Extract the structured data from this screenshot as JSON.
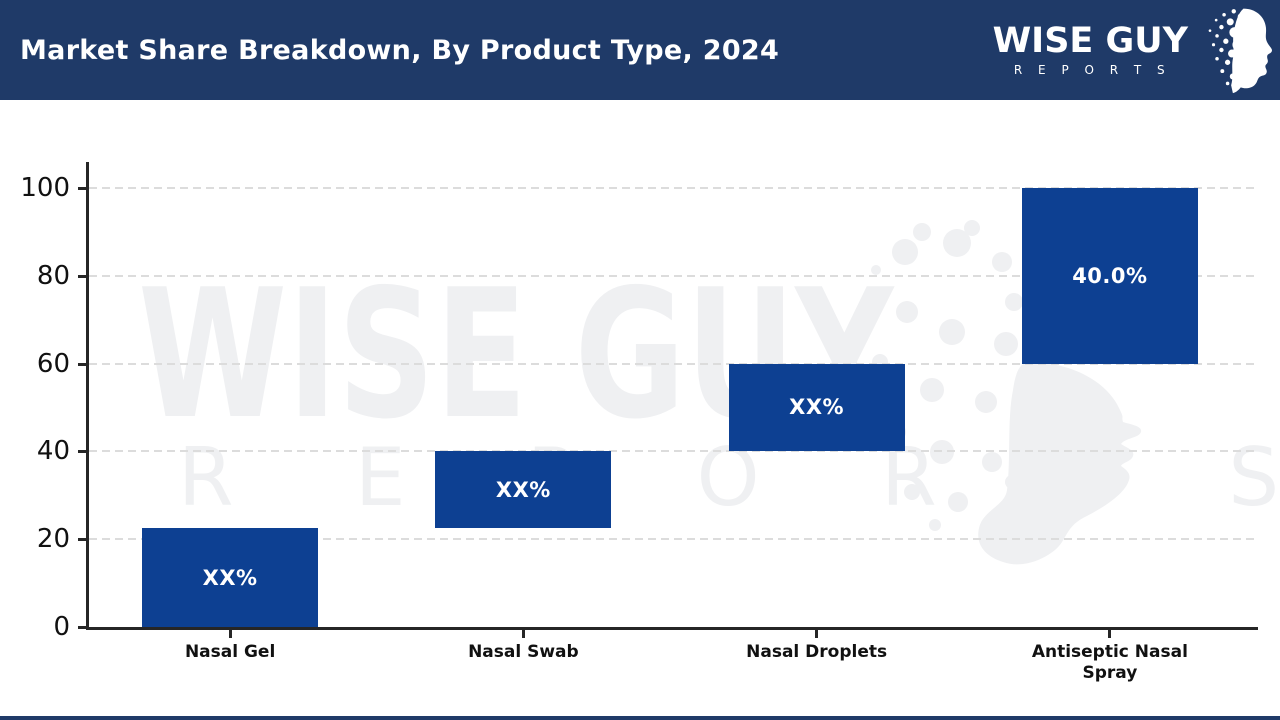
{
  "header": {
    "title": "Market Share Breakdown, By Product Type, 2024",
    "logo": {
      "name_top": "WISE GUY",
      "name_bottom": "R E P O R T S"
    }
  },
  "watermark": {
    "text_top": "WISE GUY",
    "text_bottom": "R E P O R T S"
  },
  "colors": {
    "header_bg": "#1f3a68",
    "bar_fill": "#0d4092",
    "bar_label_text": "#ffffff",
    "watermark": "#eff0f2",
    "gridline": "#dcdcdc",
    "axis": "#262626",
    "tick_label": "#111111"
  },
  "chart_data": {
    "type": "bar",
    "subtype": "waterfall",
    "title": "Market Share Breakdown, By Product Type, 2024",
    "categories": [
      "Nasal Gel",
      "Nasal Swab",
      "Nasal Droplets",
      "Antiseptic Nasal Spray"
    ],
    "segments": [
      {
        "category": "Nasal Gel",
        "start": 0,
        "end": 22.5,
        "label": "XX%"
      },
      {
        "category": "Nasal Swab",
        "start": 22.5,
        "end": 40,
        "label": "XX%"
      },
      {
        "category": "Nasal Droplets",
        "start": 40,
        "end": 60,
        "label": "XX%"
      },
      {
        "category": "Antiseptic Nasal Spray",
        "start": 60,
        "end": 100,
        "label": "40.0%"
      }
    ],
    "yticks": [
      0,
      20,
      40,
      60,
      80,
      100
    ],
    "ylim": [
      0,
      105
    ],
    "grid": "horizontal-dashed",
    "legend_position": "none"
  }
}
